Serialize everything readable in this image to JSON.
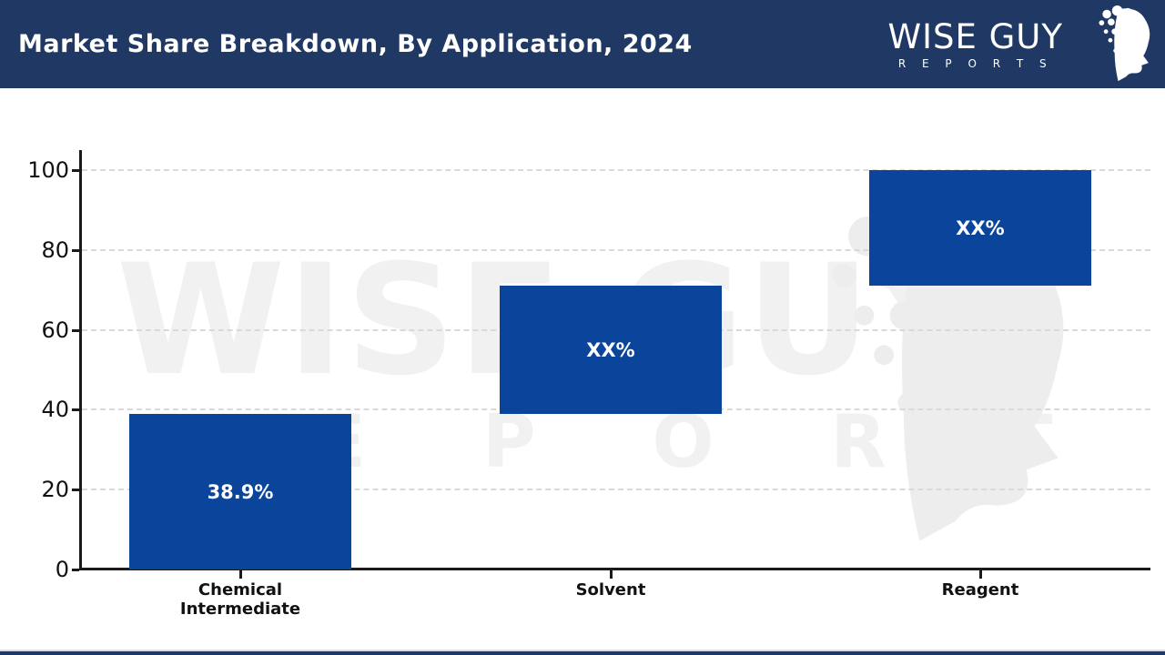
{
  "header": {
    "title": "Market Share Breakdown, By Application, 2024",
    "bg_color": "#1f3864",
    "logo": {
      "name": "WISE GUY",
      "sub": "R E P O R T S",
      "face_icon": "dotted-face-profile"
    }
  },
  "watermark": {
    "name": "WISE GUY",
    "sub": "R E P O R T S",
    "face_icon": "dotted-face-profile",
    "color": "#f1f1f1"
  },
  "chart_data": {
    "type": "bar",
    "subtype": "waterfall",
    "title": "Market Share Breakdown, By Application, 2024",
    "categories": [
      "Chemical Intermediate",
      "Solvent",
      "Reagent"
    ],
    "segments": [
      {
        "category": "Chemical Intermediate",
        "start": 0,
        "end": 38.9,
        "label": "38.9%"
      },
      {
        "category": "Solvent",
        "start": 38.9,
        "end": 71,
        "label": "XX%"
      },
      {
        "category": "Reagent",
        "start": 71,
        "end": 100,
        "label": "XX%"
      }
    ],
    "xlabel": "",
    "ylabel": "",
    "yticks": [
      0,
      20,
      40,
      60,
      80,
      100
    ],
    "ylim": [
      0,
      105
    ],
    "grid": true,
    "gridline_style": "dashed",
    "gridline_color": "#d9d9d9",
    "legend": false,
    "bar_color": "#0a449b",
    "bar_label_color": "#ffffff",
    "axis_color": "#1a1a1a"
  }
}
